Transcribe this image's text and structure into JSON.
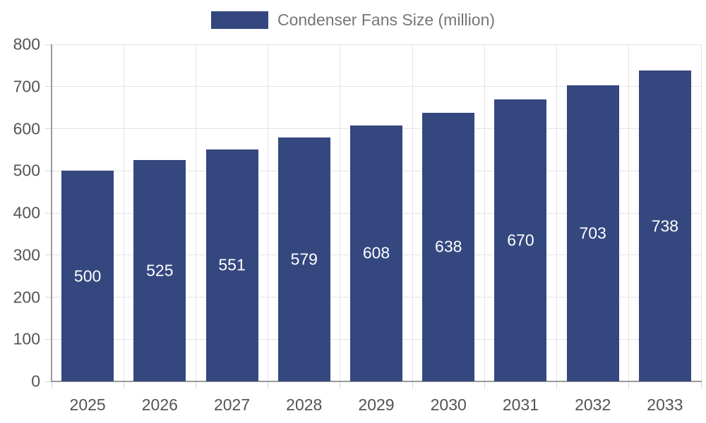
{
  "chart_data": {
    "type": "bar",
    "title": "Condenser Fans Size (million)",
    "categories": [
      "2025",
      "2026",
      "2027",
      "2028",
      "2029",
      "2030",
      "2031",
      "2032",
      "2033"
    ],
    "values": [
      500,
      525,
      551,
      579,
      608,
      638,
      670,
      703,
      738
    ],
    "series_name": "Condenser Fans Size (million)",
    "xlabel": "",
    "ylabel": "",
    "ylim": [
      0,
      800
    ],
    "y_ticks": [
      0,
      100,
      200,
      300,
      400,
      500,
      600,
      700,
      800
    ],
    "grid": true,
    "legend_position": "top-center",
    "value_labels": "inside-center",
    "colors": {
      "bar": "#35477F",
      "value_label": "#ffffff",
      "axis_line": "#999999",
      "grid_line": "#e4e4e4",
      "tick_mark": "#d6d6d6",
      "axis_tick_label": "#545454",
      "legend_text": "#767676",
      "background": "#ffffff"
    }
  }
}
